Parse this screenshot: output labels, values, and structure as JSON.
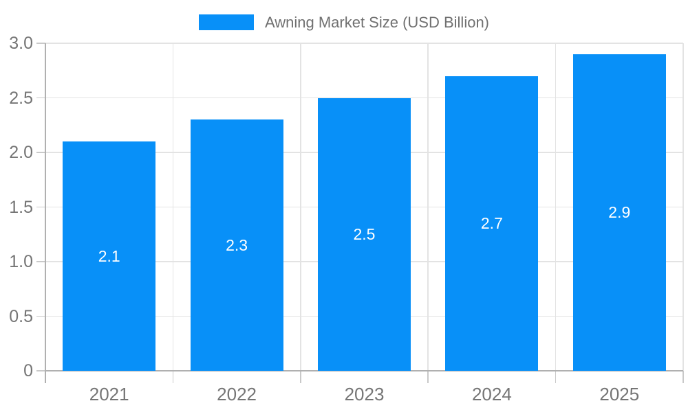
{
  "legend": {
    "label": "Awning Market Size (USD Billion)"
  },
  "chart_data": {
    "type": "bar",
    "title": "Awning Market Size (USD Billion)",
    "categories": [
      "2021",
      "2022",
      "2023",
      "2024",
      "2025"
    ],
    "values": [
      2.1,
      2.3,
      2.5,
      2.7,
      2.9
    ],
    "value_labels": [
      "2.1",
      "2.3",
      "2.5",
      "2.7",
      "2.9"
    ],
    "xlabel": "",
    "ylabel": "",
    "ylim": [
      0,
      3
    ],
    "yticks": [
      0,
      0.5,
      1,
      1.5,
      2,
      2.5,
      3
    ],
    "ytick_labels": [
      "0",
      "0.5",
      "1.0",
      "1.5",
      "2.0",
      "2.5",
      "3.0"
    ],
    "grid": true,
    "legend_position": "top",
    "colors": {
      "bar": "#0890F8",
      "grid": "#e3e3e3",
      "axis": "#b0b0b0",
      "tick": "#c9c9c9",
      "label_text": "#757575",
      "legend_text": "#707070",
      "value_text": "#ffffff",
      "background": "#ffffff"
    }
  }
}
